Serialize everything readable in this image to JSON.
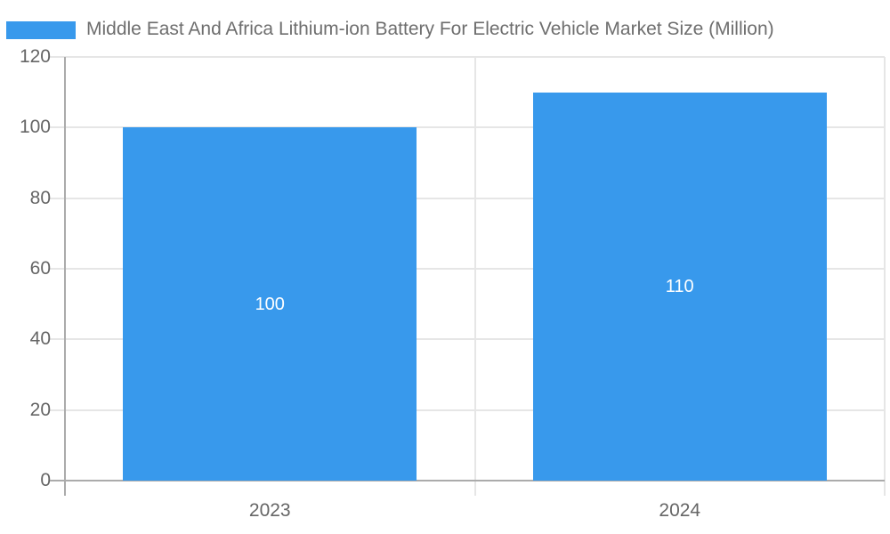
{
  "chart_data": {
    "type": "bar",
    "categories": [
      "2023",
      "2024"
    ],
    "series": [
      {
        "name": "Middle East And Africa Lithium-ion Battery For Electric Vehicle Market Size (Million)",
        "values": [
          100,
          110
        ]
      }
    ],
    "value_labels": [
      "100",
      "110"
    ],
    "title": "",
    "xlabel": "",
    "ylabel": "",
    "ylim": [
      0,
      120
    ],
    "yticks": [
      0,
      20,
      40,
      60,
      80,
      100,
      120
    ],
    "grid": true,
    "legend_position": "top-left",
    "colors": {
      "bar": "#3899EC",
      "gridline": "#e6e6e6",
      "axis_line": "#ababab",
      "tick_text": "#666666",
      "legend_text": "#6e6e6e",
      "value_label_text": "#ffffff",
      "background": "#ffffff"
    }
  }
}
